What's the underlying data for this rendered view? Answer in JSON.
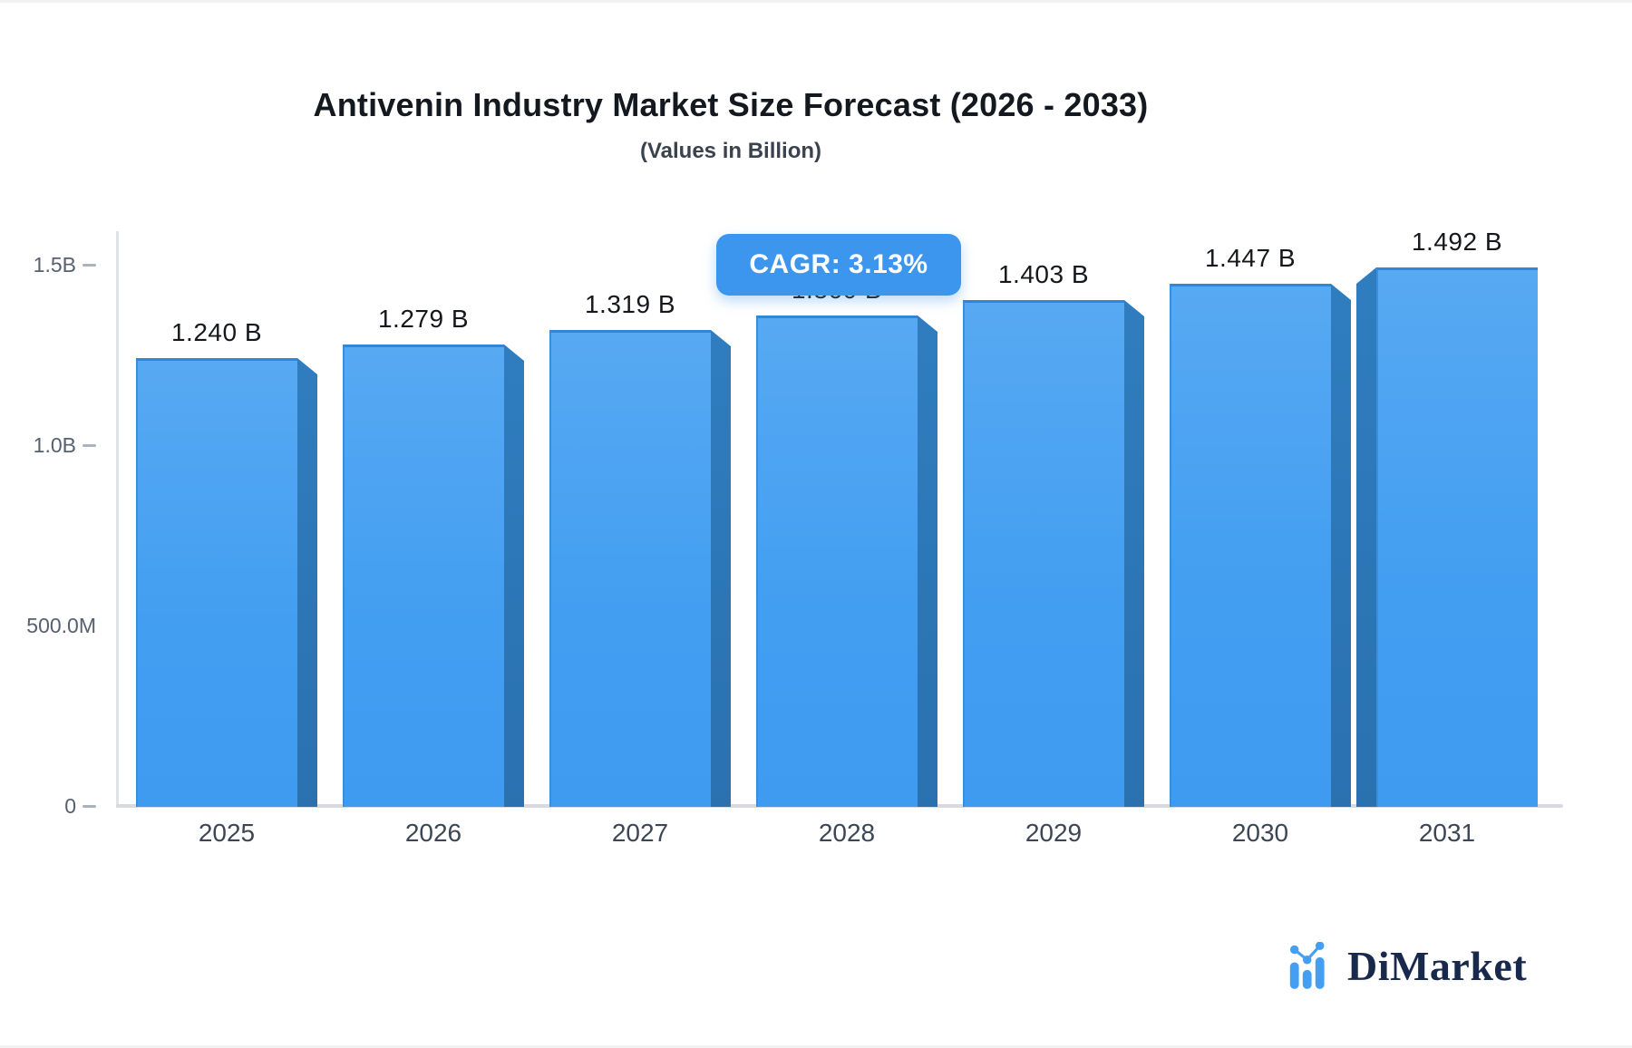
{
  "title": "Antivenin Industry Market Size Forecast (2026 - 2033)",
  "subtitle": "(Values in Billion)",
  "cagr_badge": "CAGR: 3.13%",
  "watermark": {
    "brand": "DiMarket"
  },
  "chart_data": {
    "type": "bar",
    "title": "Antivenin Industry Market Size Forecast (2026 - 2033)",
    "subtitle": "(Values in Billion)",
    "annotation": "CAGR: 3.13%",
    "categories": [
      "2025",
      "2026",
      "2027",
      "2028",
      "2029",
      "2030",
      "2031"
    ],
    "values_billion": [
      1.24,
      1.279,
      1.319,
      1.36,
      1.403,
      1.447,
      1.492
    ],
    "bar_labels": [
      "1.240 B",
      "1.279 B",
      "1.319 B",
      "1.360 B",
      "1.403 B",
      "1.447 B",
      "1.492 B"
    ],
    "ylim_billion": [
      0,
      1.5
    ],
    "y_ticks": [
      {
        "label": "1.5B",
        "value": 1.5,
        "dash": true
      },
      {
        "label": "1.0B",
        "value": 1.0,
        "dash": true
      },
      {
        "label": "500.0M",
        "value": 0.5,
        "dash": false
      },
      {
        "label": "0",
        "value": 0.0,
        "dash": true
      }
    ],
    "grid": false,
    "legend": false,
    "colors": {
      "bar_front": "#429ef1",
      "bar_front_light": "#57a9f2",
      "bar_side": "#2d77b7",
      "badge": "#3d96ee",
      "axis_line": "#d9dde2",
      "value_text": "#14181d",
      "tick_text": "#566070",
      "logo_blue": "#449ff2",
      "logo_navy": "#18294b"
    }
  }
}
